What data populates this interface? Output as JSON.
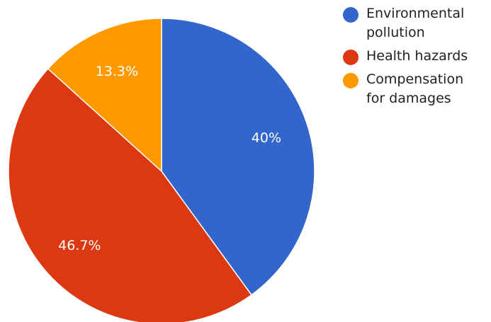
{
  "chart_data": {
    "type": "pie",
    "categories": [
      "Environmental pollution",
      "Health hazards",
      "Compensation for damages"
    ],
    "values": [
      40,
      46.7,
      13.3
    ],
    "labels": [
      "40%",
      "46.7%",
      "13.3%"
    ],
    "colors": [
      "#3366cc",
      "#dc3912",
      "#ff9900"
    ],
    "legend_position": "right",
    "start_angle_deg": 0,
    "direction": "clockwise"
  }
}
